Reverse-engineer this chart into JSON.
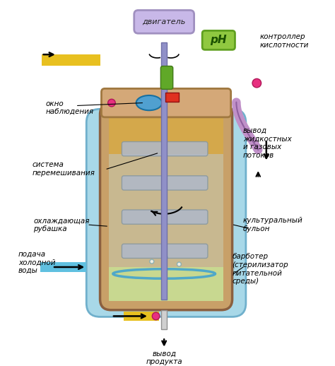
{
  "bg_color": "#ffffff",
  "labels": {
    "motor": "двигатель",
    "ph_label": "pH",
    "ph_controller": "контроллер\nкислотности",
    "observation_window": "окно\nнаблюдения",
    "mixing_system": "система\nперемешивания",
    "cooling_jacket": "охлаждающая\nрубашка",
    "cold_water": "подача\nхолодной\nводы",
    "liquid_gas_output": "вывод\nжидкостных\nи газовых\nпотоков",
    "culture_broth": "культуральный\nбульон",
    "sparger": "барботер\n(стерилизатор\nпитательной\nсреды)",
    "product_output": "вывод\nпродукта"
  },
  "colors": {
    "vessel_outer": "#c8a068",
    "vessel_inner_liquid": "#d4a84b",
    "vessel_inner_mid": "#c8b890",
    "vessel_inner_bottom": "#c8d890",
    "vessel_wall_outer": "#8b6040",
    "vessel_cooling": "#a8d8e8",
    "shaft": "#9090c8",
    "impeller": "#b0b8c8",
    "motor_box": "#c8b8e8",
    "motor_box_border": "#a090c0",
    "ph_box": "#90c840",
    "ph_box_border": "#60a020",
    "top_plate": "#d4a878",
    "top_plate_border": "#a07840",
    "arrow_color": "#000000",
    "pipe_yellow": "#e8c020",
    "pipe_blue": "#60c0e0",
    "pipe_purple": "#c090c8",
    "green_connector": "#60a828",
    "pink_dot": "#e83080",
    "red_block": "#e03020",
    "bottom_output_pipe": "#d0d0d0"
  }
}
